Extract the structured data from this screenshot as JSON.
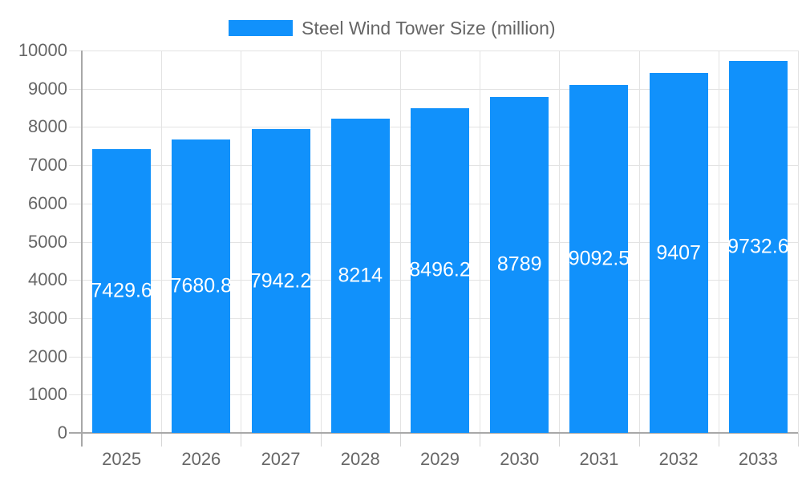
{
  "legend": {
    "label": "Steel Wind Tower Size (million)"
  },
  "colors": {
    "bar": "#1191fb",
    "axis_text": "#666666",
    "legend_text": "#666666",
    "grid": "#e3e3e3",
    "tick": "#d6d6d6",
    "axis_line": "#a8a8a8",
    "data_label": "#ffffff",
    "background": "#ffffff"
  },
  "chart_data": {
    "type": "bar",
    "title": "Steel Wind Tower Size (million)",
    "categories": [
      "2025",
      "2026",
      "2027",
      "2028",
      "2029",
      "2030",
      "2031",
      "2032",
      "2033"
    ],
    "series": [
      {
        "name": "Steel Wind Tower Size (million)",
        "values": [
          7429.6,
          7680.8,
          7942.2,
          8214,
          8496.2,
          8789,
          9092.5,
          9407,
          9732.6
        ],
        "labels": [
          "7429.6",
          "7680.8",
          "7942.2",
          "8214",
          "8496.2",
          "8789",
          "9092.5",
          "9407",
          "9732.6"
        ]
      }
    ],
    "xlabel": "",
    "ylabel": "",
    "ylim": [
      0,
      10000
    ],
    "ytick_step": 1000,
    "ytick_labels": [
      "0",
      "1000",
      "2000",
      "3000",
      "4000",
      "5000",
      "6000",
      "7000",
      "8000",
      "9000",
      "10000"
    ],
    "grid": true,
    "legend_position": "top",
    "data_labels_inside_bars": true
  }
}
